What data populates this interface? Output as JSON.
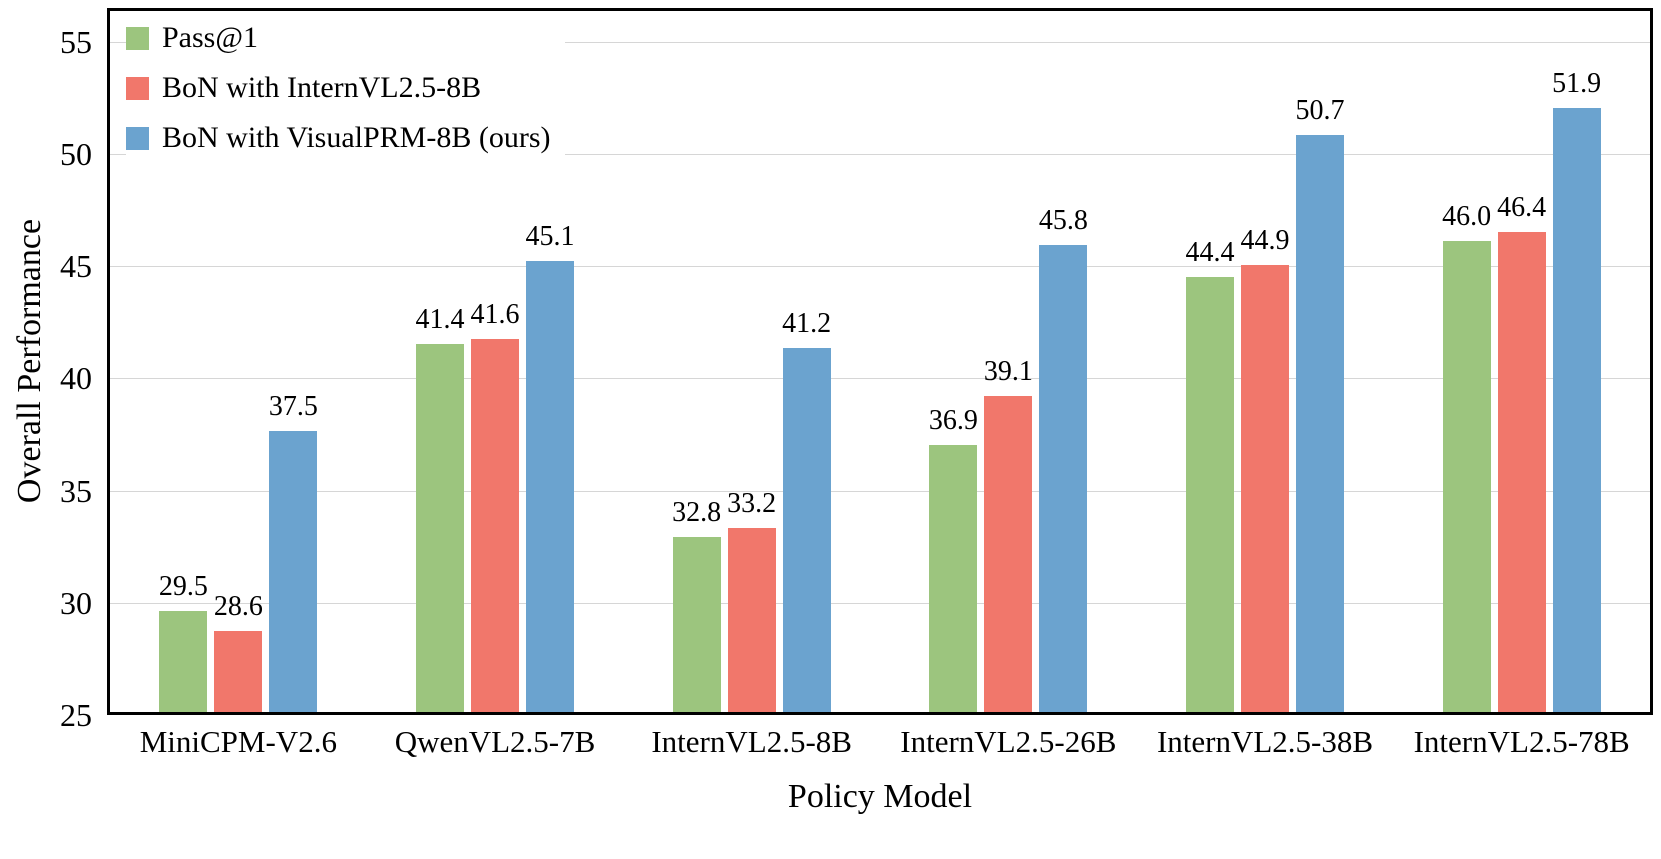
{
  "chart_data": {
    "type": "bar",
    "title": "",
    "xlabel": "Policy Model",
    "ylabel": "Overall Performance",
    "ylim": [
      25,
      55
    ],
    "ymax_render": 56.5,
    "yticks": [
      25,
      30,
      35,
      40,
      45,
      50,
      55
    ],
    "grid": true,
    "legend_position": "top-left",
    "categories": [
      "MiniCPM-V2.6",
      "QwenVL2.5-7B",
      "InternVL2.5-8B",
      "InternVL2.5-26B",
      "InternVL2.5-38B",
      "InternVL2.5-78B"
    ],
    "series": [
      {
        "name": "Pass@1",
        "color": "#9cc57e",
        "values": [
          29.5,
          41.4,
          32.8,
          36.9,
          44.4,
          46.0
        ]
      },
      {
        "name": "BoN with InternVL2.5-8B",
        "color": "#f1776b",
        "values": [
          28.6,
          41.6,
          33.2,
          39.1,
          44.9,
          46.4
        ]
      },
      {
        "name": "BoN with VisualPRM-8B (ours)",
        "color": "#6ba3cf",
        "values": [
          37.5,
          45.1,
          41.2,
          45.8,
          50.7,
          51.9
        ]
      }
    ],
    "colors": {
      "gridline": "#d6d6d6",
      "axis": "#000000",
      "text": "#000000"
    }
  }
}
